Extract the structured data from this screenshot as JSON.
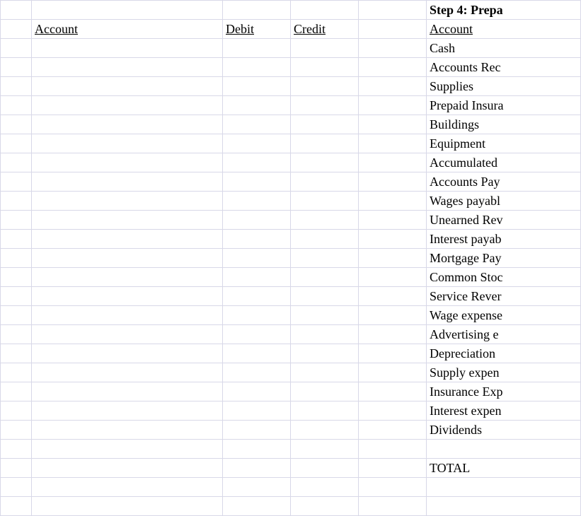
{
  "header": {
    "step4": "Step 4: Prepa",
    "account_left": "Account",
    "debit": "Debit",
    "credit": "Credit",
    "account_right": "Account"
  },
  "rows": [
    "Cash",
    "Accounts Rec",
    "Supplies",
    "Prepaid Insura",
    "Buildings",
    "Equipment",
    "Accumulated ",
    "Accounts Pay",
    "Wages payabl",
    "Unearned Rev",
    "Interest payab",
    "Mortgage Pay",
    "Common Stoc",
    "Service Rever",
    "Wage expense",
    "Advertising e",
    "Depreciation ",
    "Supply expen",
    "Insurance Exp",
    "Interest expen",
    "Dividends"
  ],
  "total": "TOTAL"
}
